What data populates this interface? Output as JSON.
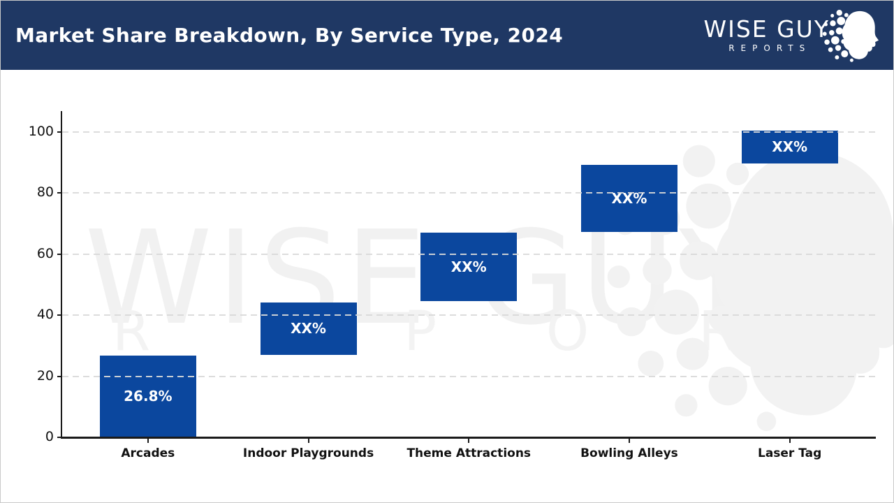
{
  "header": {
    "title": "Market Share Breakdown, By Service Type, 2024",
    "logo": {
      "line1": "WISE GUY",
      "line2": "REPORTS"
    }
  },
  "watermark": {
    "line1": "WISE GUY",
    "line2": "R E P O R T S"
  },
  "colors": {
    "header_bg": "#1F3864",
    "bar": "#0B479E",
    "grid": "#D9D9D9",
    "axis": "#1A1A1A",
    "text": "#111111",
    "bar_label": "#FFFFFF",
    "watermark": "#F1F1F1",
    "background": "#FFFFFF"
  },
  "chart_data": {
    "type": "bar",
    "subtype": "waterfall",
    "title": "Market Share Breakdown, By Service Type, 2024",
    "xlabel": "",
    "ylabel": "",
    "categories": [
      "Arcades",
      "Indoor Playgrounds",
      "Theme Attractions",
      "Bowling Alleys",
      "Laser Tag"
    ],
    "segments": [
      {
        "category": "Arcades",
        "start": 0,
        "end": 26.8,
        "value": 26.8,
        "label": "26.8%"
      },
      {
        "category": "Indoor Playgrounds",
        "start": 27.0,
        "end": 44.2,
        "value": 17.2,
        "label": "XX%"
      },
      {
        "category": "Theme Attractions",
        "start": 44.6,
        "end": 67.0,
        "value": 22.4,
        "label": "XX%"
      },
      {
        "category": "Bowling Alleys",
        "start": 67.3,
        "end": 89.2,
        "value": 21.9,
        "label": "XX%"
      },
      {
        "category": "Laser Tag",
        "start": 89.7,
        "end": 100.3,
        "value": 10.6,
        "label": "XX%"
      }
    ],
    "y_ticks": [
      0,
      20,
      40,
      60,
      80,
      100
    ],
    "ylim": [
      0,
      106
    ],
    "grid": "horizontal-dashed",
    "legend": "none",
    "bar_color": "#0B479E",
    "label_position": "center-of-bar"
  }
}
